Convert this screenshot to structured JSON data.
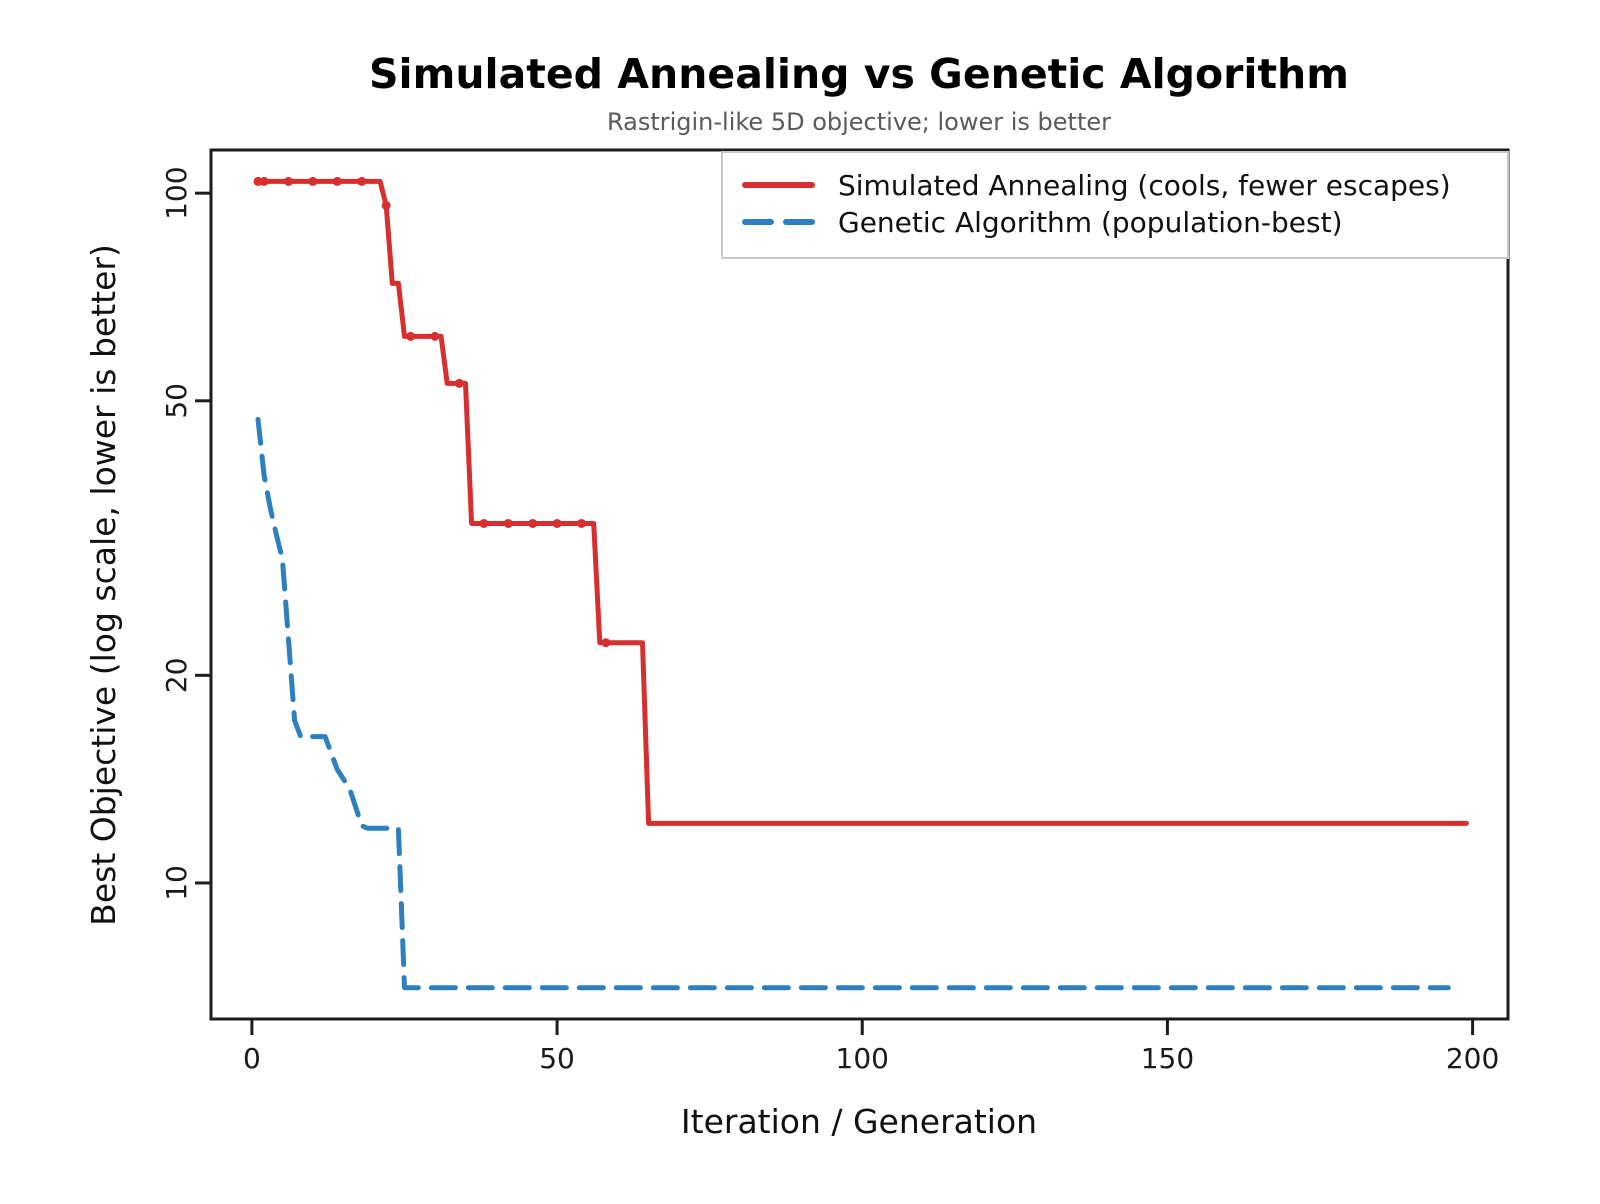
{
  "chart_data": {
    "type": "line",
    "title": "Simulated Annealing vs Genetic Algorithm",
    "subtitle": "Rastrigin-like 5D objective; lower is better",
    "xlabel": "Iteration / Generation",
    "ylabel": "Best Objective (log scale, lower is better)",
    "y_scale": "log",
    "grid": false,
    "legend_position": "top-right",
    "x_ticks": [
      0,
      50,
      100,
      150,
      200
    ],
    "y_ticks": [
      10,
      20,
      50,
      100
    ],
    "xlim": [
      -6.7,
      205.8
    ],
    "ylim": [
      6.35,
      115.5
    ],
    "frame_color": "#1c1c1c",
    "series": [
      {
        "key": "simulated-annealing",
        "name": "Simulated Annealing  (cools, fewer escapes)",
        "color": "#d62f2f",
        "style": "solid",
        "line_width": 5,
        "marker": "dot",
        "marker_iterations": [
          1,
          2,
          6,
          10,
          14,
          18,
          22,
          26,
          30,
          34,
          38,
          42,
          46,
          50,
          54,
          58
        ],
        "points": [
          [
            1,
            104
          ],
          [
            21,
            104
          ],
          [
            22,
            96
          ],
          [
            23,
            74
          ],
          [
            24,
            74
          ],
          [
            25,
            62
          ],
          [
            31,
            62
          ],
          [
            32,
            53
          ],
          [
            35,
            53
          ],
          [
            36,
            33.2
          ],
          [
            56,
            33.2
          ],
          [
            57,
            22.3
          ],
          [
            64,
            22.3
          ],
          [
            65,
            12.2
          ],
          [
            199,
            12.2
          ]
        ]
      },
      {
        "key": "genetic-algorithm",
        "name": "Genetic Algorithm  (population-best)",
        "color": "#2e7fbf",
        "style": "dashed",
        "line_width": 5,
        "marker": "none",
        "marker_iterations": [],
        "points": [
          [
            1,
            47
          ],
          [
            2,
            39
          ],
          [
            3,
            35
          ],
          [
            4,
            32
          ],
          [
            5,
            29.5
          ],
          [
            7,
            17.2
          ],
          [
            8,
            16.3
          ],
          [
            12,
            16.3
          ],
          [
            14,
            14.6
          ],
          [
            16,
            13.7
          ],
          [
            18,
            12.1
          ],
          [
            19,
            12.0
          ],
          [
            24,
            12.0
          ],
          [
            25,
            7.05
          ],
          [
            196,
            7.05
          ]
        ]
      }
    ]
  }
}
